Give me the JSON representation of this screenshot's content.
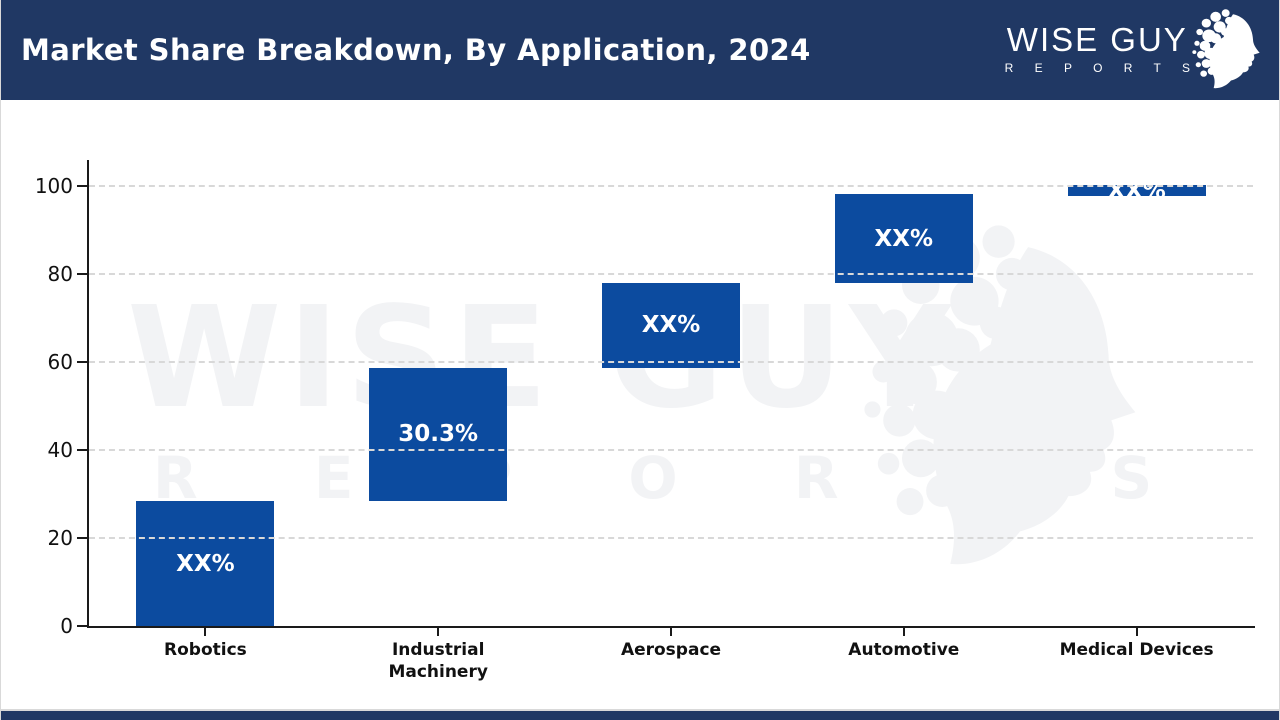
{
  "header": {
    "title": "Market Share Breakdown, By Application, 2024",
    "logo": {
      "line1": "WISE GUY",
      "line2": "R E P O R T S"
    }
  },
  "watermark": {
    "line1": "WISE GUY",
    "line2": "R E P O R T S"
  },
  "colors": {
    "header_bg": "#203864",
    "footer_bg": "#203864",
    "bar": "#0c4b9f",
    "grid": "#d8d8d8",
    "axis": "#1a1a1a",
    "tick_text": "#111111",
    "bar_label_text": "#ffffff",
    "watermark": "#f2f3f5"
  },
  "chart_data": {
    "type": "bar",
    "subtype": "waterfall",
    "title": "Market Share Breakdown, By Application, 2024",
    "xlabel": "",
    "ylabel": "",
    "ylim": [
      0,
      100
    ],
    "yticks": [
      0,
      20,
      40,
      60,
      80,
      100
    ],
    "grid": "horizontal-dashed",
    "legend": "none",
    "categories": [
      "Robotics",
      "Industrial\nMachinery",
      "Aerospace",
      "Automotive",
      "Medical Devices"
    ],
    "segments": [
      {
        "category": "Robotics",
        "start": 0,
        "end": 28.4,
        "label": "XX%"
      },
      {
        "category": "Industrial Machinery",
        "start": 28.4,
        "end": 58.7,
        "label": "30.3%"
      },
      {
        "category": "Aerospace",
        "start": 58.7,
        "end": 77.9,
        "label": "XX%"
      },
      {
        "category": "Automotive",
        "start": 77.9,
        "end": 98.2,
        "label": "XX%"
      },
      {
        "category": "Medical Devices",
        "start": 97.7,
        "end": 100.2,
        "label": "XX%"
      }
    ]
  }
}
